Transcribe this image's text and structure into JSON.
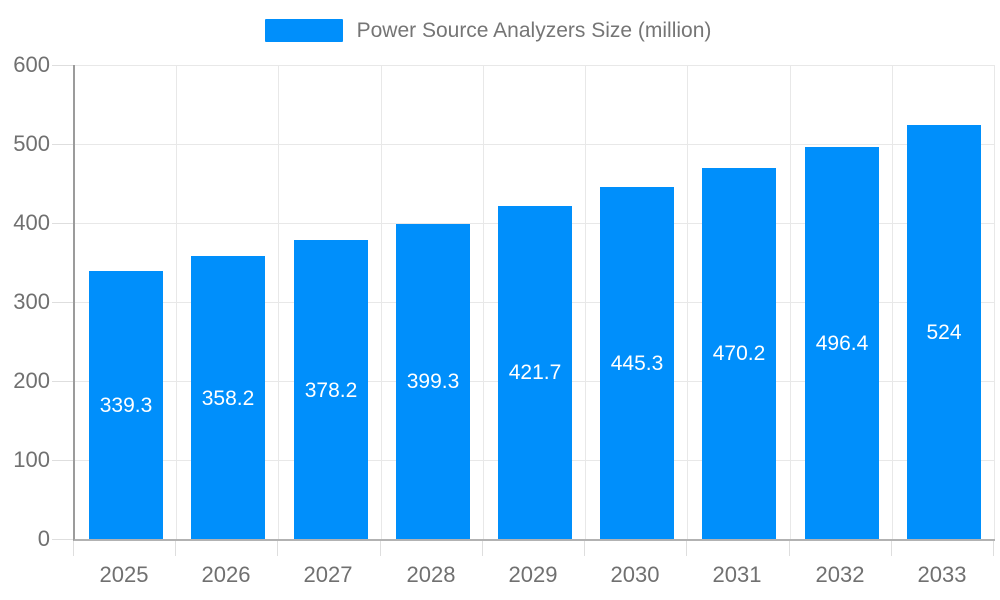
{
  "chart_data": {
    "type": "bar",
    "title": "Power Source Analyzers Size (million)",
    "categories": [
      "2025",
      "2026",
      "2027",
      "2028",
      "2029",
      "2030",
      "2031",
      "2032",
      "2033"
    ],
    "values": [
      339.3,
      358.2,
      378.2,
      399.3,
      421.7,
      445.3,
      470.2,
      496.4,
      524
    ],
    "value_labels": [
      "339.3",
      "358.2",
      "378.2",
      "399.3",
      "421.7",
      "445.3",
      "470.2",
      "496.4",
      "524"
    ],
    "ylim": [
      0,
      600
    ],
    "ytick_step": 100,
    "ytick_labels": [
      "0",
      "100",
      "200",
      "300",
      "400",
      "500",
      "600"
    ],
    "grid": true,
    "legend_position": "top",
    "colors": {
      "bar": "#008ffb",
      "bar_label": "#ffffff",
      "axis_text": "#707070",
      "legend_text": "#757575",
      "gridline": "#e8e8e8",
      "tick": "#dedede",
      "yaxis_line": "#9b9b9b",
      "xaxis_line": "#b2b2b2",
      "background": "#ffffff"
    }
  }
}
